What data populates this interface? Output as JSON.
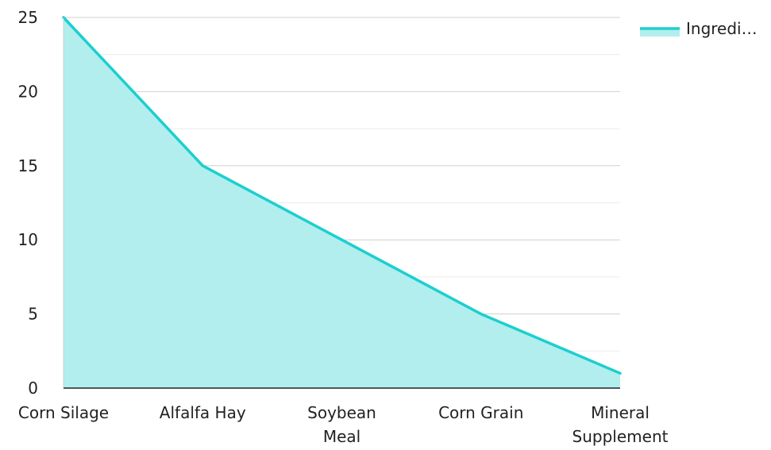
{
  "chart_data": {
    "type": "area",
    "categories": [
      [
        "Corn Silage"
      ],
      [
        "Alfalfa Hay"
      ],
      [
        "Soybean",
        "Meal"
      ],
      [
        "Corn Grain"
      ],
      [
        "Mineral",
        "Supplement"
      ]
    ],
    "series": [
      {
        "name": "Ingredi…",
        "values": [
          25,
          15,
          10,
          5,
          1
        ],
        "color": "#1ccfcf",
        "fill": "#b2eeee"
      }
    ],
    "ylim": [
      0,
      25
    ],
    "yticks": [
      "0",
      "5",
      "10",
      "15",
      "20",
      "25"
    ],
    "ytick_values": [
      0,
      5,
      10,
      15,
      20,
      25
    ],
    "grid": true,
    "legend_position": "top-right"
  }
}
